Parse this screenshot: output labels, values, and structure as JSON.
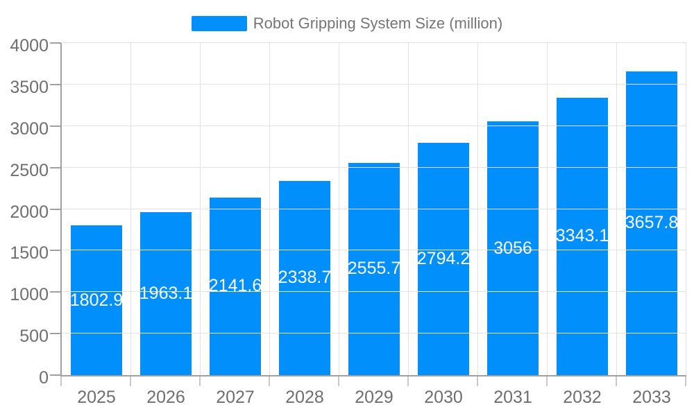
{
  "chart_data": {
    "type": "bar",
    "title": "Robot Gripping System Size (million)",
    "legend": {
      "label": "Robot Gripping System Size (million)",
      "position": "top"
    },
    "categories": [
      "2025",
      "2026",
      "2027",
      "2028",
      "2029",
      "2030",
      "2031",
      "2032",
      "2033"
    ],
    "series": [
      {
        "name": "Robot Gripping System Size (million)",
        "values": [
          1802.9,
          1963.1,
          2141.6,
          2338.7,
          2555.7,
          2794.2,
          3056,
          3343.1,
          3657.8
        ]
      }
    ],
    "value_labels": [
      "1802.9",
      "1963.1",
      "2141.6",
      "2338.7",
      "2555.7",
      "2794.2",
      "3056",
      "3343.1",
      "3657.8"
    ],
    "xlabel": "",
    "ylabel": "",
    "ylim": [
      0,
      4000
    ],
    "ytick_step": 500,
    "ytick_labels": [
      "0",
      "500",
      "1000",
      "1500",
      "2000",
      "2500",
      "3000",
      "3500",
      "4000"
    ],
    "grid": {
      "horizontal": true,
      "vertical": true
    },
    "colors": {
      "bar": "#008FFB",
      "data_label": "#ffffff",
      "axis_label": "#6e6e6e",
      "legend_label": "#757575",
      "gridline": "#e2e2e2",
      "axis_line": "#a0a0a0",
      "tick": "#c9c9c9"
    }
  }
}
